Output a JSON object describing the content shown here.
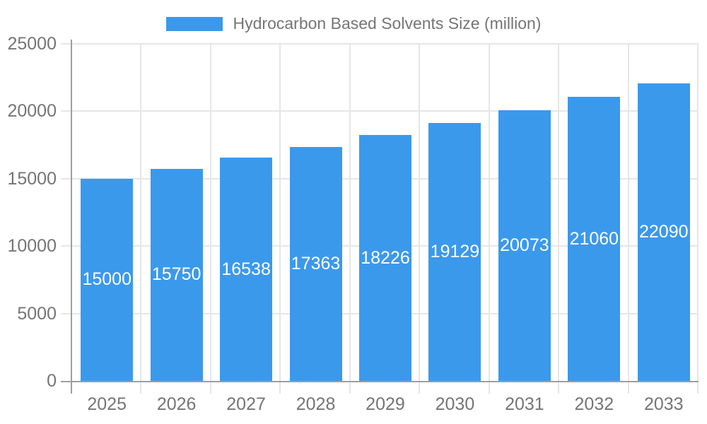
{
  "legend": {
    "label": "Hydrocarbon Based Solvents Size (million)"
  },
  "chart_data": {
    "type": "bar",
    "title": "Hydrocarbon Based Solvents Size (million)",
    "categories": [
      "2025",
      "2026",
      "2027",
      "2028",
      "2029",
      "2030",
      "2031",
      "2032",
      "2033"
    ],
    "values": [
      15000,
      15750,
      16538,
      17363,
      18226,
      19129,
      20073,
      21060,
      22090
    ],
    "series": [
      {
        "name": "Hydrocarbon Based Solvents Size (million)",
        "values": [
          15000,
          15750,
          16538,
          17363,
          18226,
          19129,
          20073,
          21060,
          22090
        ]
      }
    ],
    "xlabel": "",
    "ylabel": "",
    "ylim": [
      0,
      25000
    ],
    "yticks": [
      0,
      5000,
      10000,
      15000,
      20000,
      25000
    ],
    "bar_value_labels": [
      "15000",
      "15750",
      "16538",
      "17363",
      "18226",
      "19129",
      "20073",
      "21060",
      "22090"
    ],
    "legend_position": "top",
    "grid": true,
    "colors": {
      "bar": "#3b99ec",
      "grid": "#e6e6e6",
      "axis": "#9e9e9e",
      "text": "#757575",
      "bar_label": "#ffffff",
      "background": "#ffffff"
    }
  }
}
